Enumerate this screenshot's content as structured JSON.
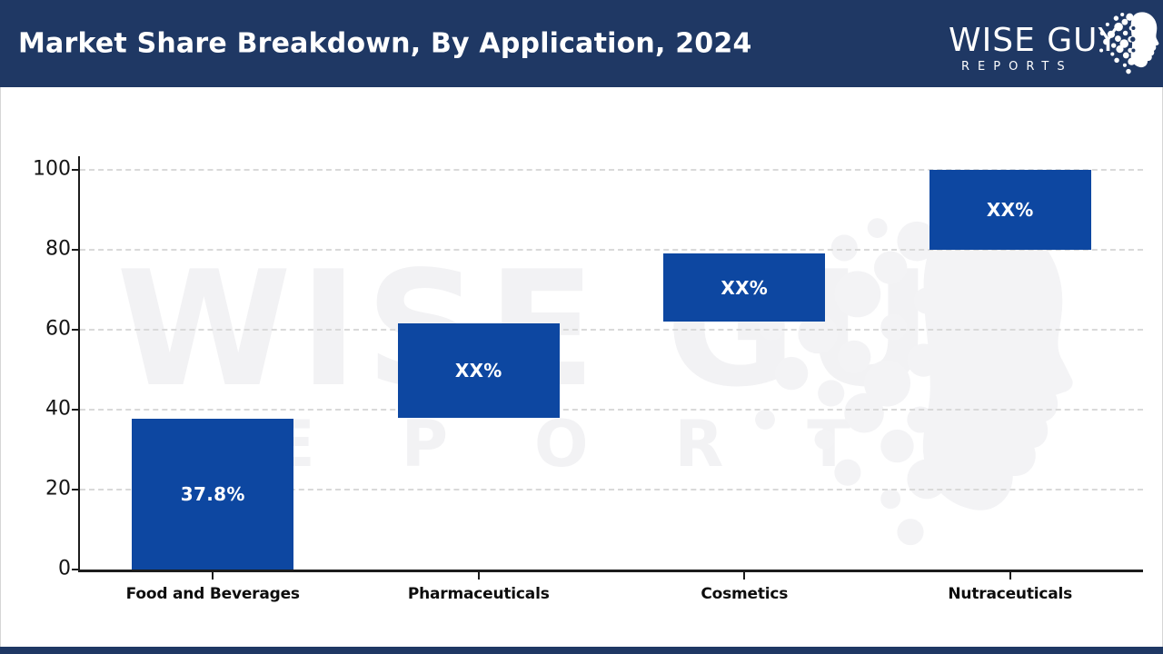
{
  "header": {
    "title": "Market Share Breakdown, By Application, 2024",
    "logo": {
      "line1": "WISE GUY",
      "line2": "REPORTS"
    }
  },
  "watermark": {
    "line1": "WISE GUY",
    "line2": "REPORTS"
  },
  "colors": {
    "header_bg": "#1f3864",
    "bar_blue": "#0d47a1",
    "watermark_gray": "#f2f2f4",
    "gridline_gray": "#d9d9d9"
  },
  "chart_data": {
    "type": "bar",
    "subtype": "stacked-waterfall-percentage",
    "title": "Market Share Breakdown, By Application, 2024",
    "categories": [
      "Food and Beverages",
      "Pharmaceuticals",
      "Cosmetics",
      "Nutraceuticals"
    ],
    "bars": [
      {
        "category": "Food and Beverages",
        "from": 0,
        "to": 37.8,
        "label": "37.8%"
      },
      {
        "category": "Pharmaceuticals",
        "from": 38,
        "to": 61.5,
        "label": "XX%"
      },
      {
        "category": "Cosmetics",
        "from": 62,
        "to": 79,
        "label": "XX%"
      },
      {
        "category": "Nutraceuticals",
        "from": 80,
        "to": 100,
        "label": "XX%"
      }
    ],
    "xlabel": "",
    "ylabel": "",
    "ylim": [
      0,
      100
    ],
    "yticks": [
      0,
      20,
      40,
      60,
      80,
      100
    ],
    "grid": "horizontal-dashed",
    "legend": "none",
    "bar_color": "#0d47a1",
    "bar_label_color": "#ffffff"
  }
}
